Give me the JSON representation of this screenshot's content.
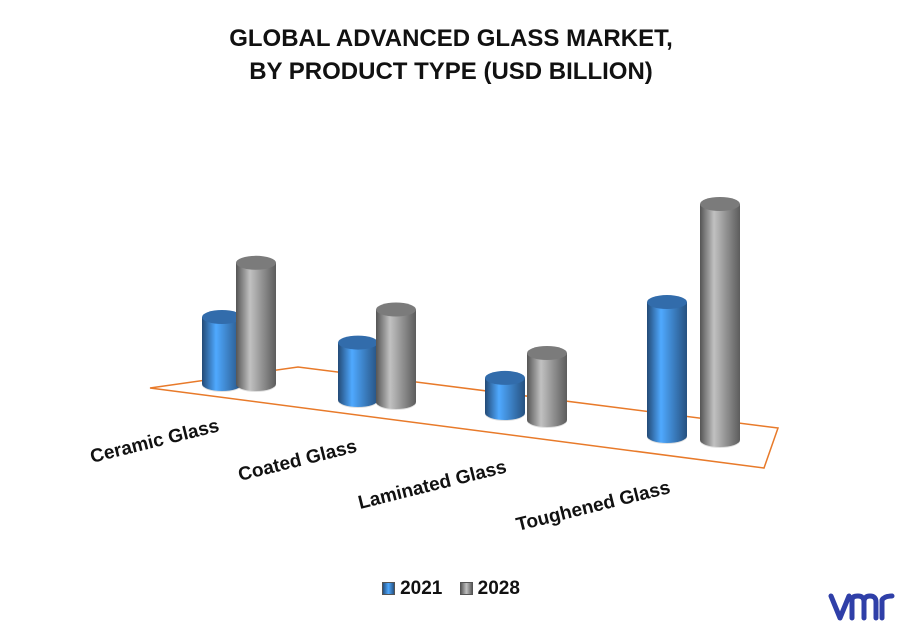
{
  "title_line1": "GLOBAL ADVANCED GLASS MARKET,",
  "title_line2": "BY PRODUCT TYPE (USD BILLION)",
  "brand_logo_text": "vmr",
  "colors": {
    "series_2021": "#3f87d6",
    "series_2028": "#9a9a9a",
    "floor_outline": "#e87a2a",
    "logo": "#2f3fa8"
  },
  "chart_data": {
    "type": "bar",
    "style": "3d-cylinder",
    "title": "GLOBAL ADVANCED GLASS MARKET, BY PRODUCT TYPE (USD BILLION)",
    "categories": [
      "Ceramic Glass",
      "Coated Glass",
      "Laminated Glass",
      "Toughened Glass"
    ],
    "series": [
      {
        "name": "2021",
        "values": [
          2.1,
          1.8,
          1.1,
          4.2
        ]
      },
      {
        "name": "2028",
        "values": [
          3.8,
          2.9,
          2.1,
          7.4
        ]
      }
    ],
    "legend_position": "bottom",
    "grid": false
  }
}
